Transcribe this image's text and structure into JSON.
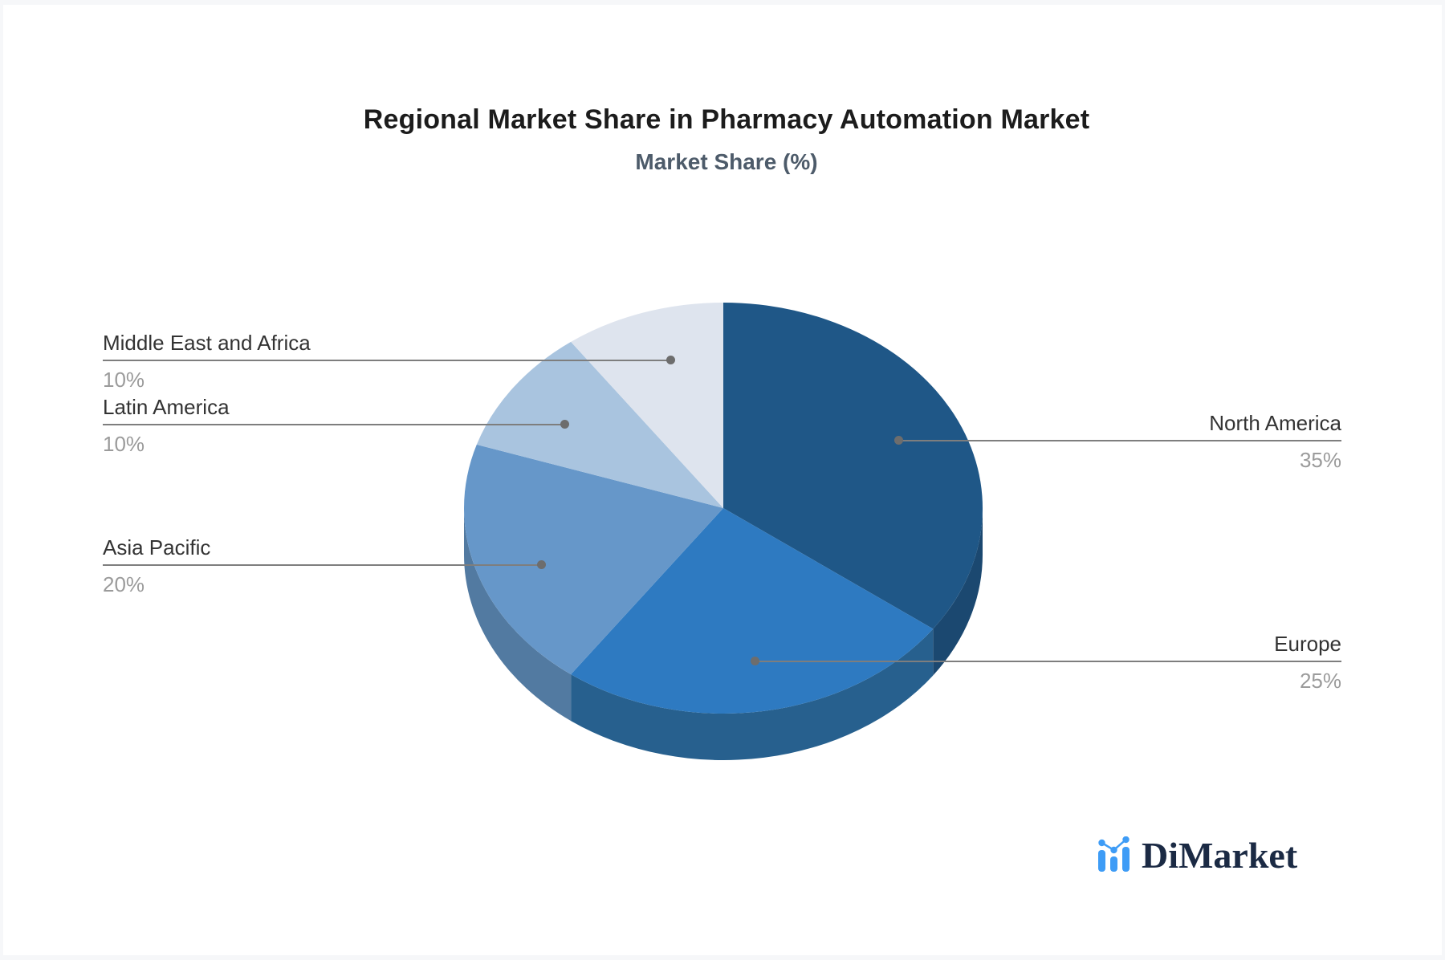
{
  "chart_data": {
    "type": "pie",
    "title": "Regional Market Share in Pharmacy Automation Market",
    "subtitle": "Market Share (%)",
    "legend_position": "none",
    "grid": false,
    "style_3d": true,
    "slices": [
      {
        "label": "North America",
        "value": 35,
        "pct_text": "35%",
        "color": "#1F5787",
        "side_color": "#1B4870"
      },
      {
        "label": "Europe",
        "value": 25,
        "pct_text": "25%",
        "color": "#2E7AC1",
        "side_color": "#27608E"
      },
      {
        "label": "Asia Pacific",
        "value": 20,
        "pct_text": "20%",
        "color": "#6697C9",
        "side_color": "#527AA1"
      },
      {
        "label": "Latin America",
        "value": 10,
        "pct_text": "10%",
        "color": "#A9C4DF",
        "side_color": "#8CA7C2"
      },
      {
        "label": "Middle East and Africa",
        "value": 10,
        "pct_text": "10%",
        "color": "#DEE4EE",
        "side_color": "#BCC6D3"
      }
    ],
    "label_style": {
      "name_color": "#333333",
      "pct_color": "#9B9B9B",
      "leader_line_color": "#7E7E7E",
      "dot_color": "#6D6D6D"
    }
  },
  "branding": {
    "logo_text": "DiMarket",
    "logo_color": "#1B2A44",
    "icon_color": "#3E9CF6",
    "icon_name": "bar-chart-trend-icon"
  },
  "page": {
    "edge_strip_color": "#F6F7F9",
    "background_color": "#FFFFFF"
  }
}
